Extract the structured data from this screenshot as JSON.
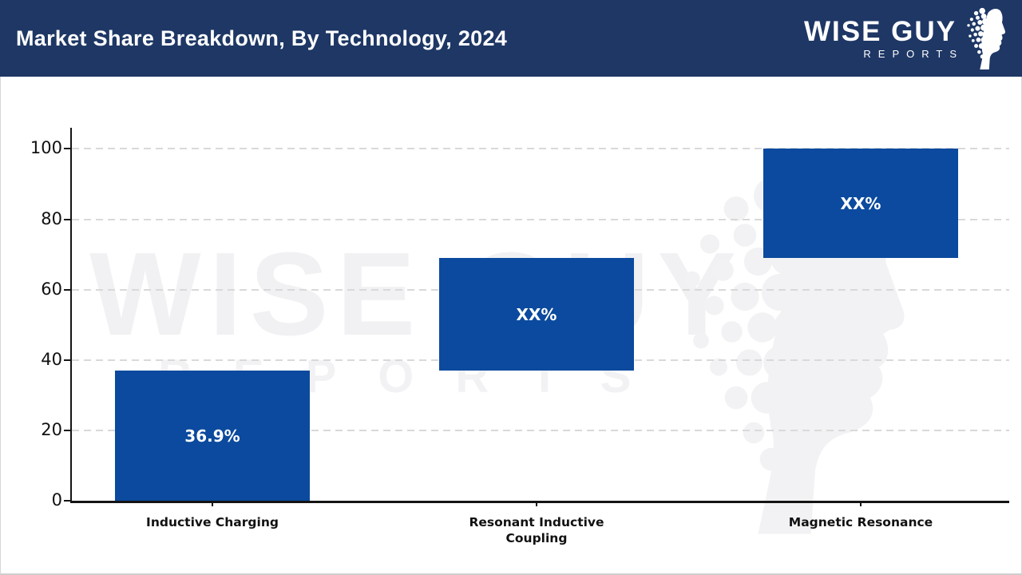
{
  "header": {
    "title": "Market Share Breakdown, By Technology, 2024",
    "background": "#1e3765",
    "logo": {
      "line1": "WISE GUY",
      "line2": "REPORTS"
    }
  },
  "watermark": {
    "line1": "WISE GUY",
    "line2": "REPORTS"
  },
  "chart_data": {
    "type": "bar",
    "subtype": "waterfall",
    "title": "Market Share Breakdown, By Technology, 2024",
    "categories": [
      "Inductive Charging",
      "Resonant Inductive\nCoupling",
      "Magnetic Resonance"
    ],
    "segments": [
      {
        "category": "Inductive Charging",
        "start": 0,
        "end": 36.9,
        "label": "36.9%"
      },
      {
        "category": "Resonant Inductive Coupling",
        "start": 36.9,
        "end": 69,
        "label": "XX%"
      },
      {
        "category": "Magnetic Resonance",
        "start": 69,
        "end": 100,
        "label": "XX%"
      }
    ],
    "bar_color": "#0b4a9e",
    "label_color": "#ffffff",
    "yticks": [
      0,
      20,
      40,
      60,
      80,
      100
    ],
    "ylim": [
      0,
      106
    ],
    "xlabel": "",
    "ylabel": "",
    "grid": "dashed-horizontal",
    "legend": "none"
  }
}
